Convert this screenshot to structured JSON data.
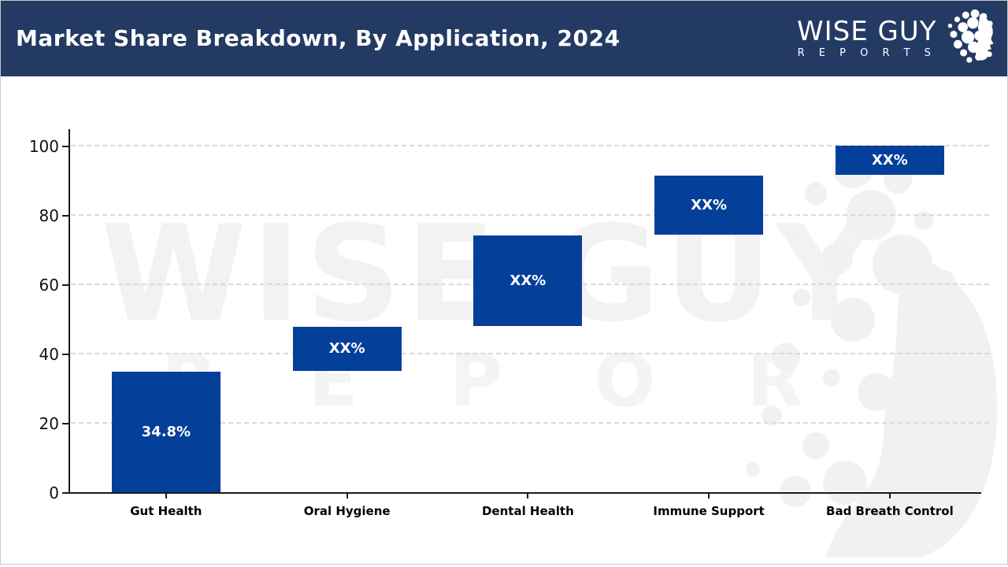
{
  "header": {
    "title": "Market Share Breakdown, By Application, 2024",
    "bg_color": "#233A63",
    "logo": {
      "line1": "WISE GUY",
      "line2": "R E P O R T S"
    }
  },
  "watermark": {
    "line1": "WISE GUY",
    "line2": "R E P O R T S"
  },
  "chart_data": {
    "type": "bar",
    "variant": "floating-waterfall",
    "categories": [
      "Gut Health",
      "Oral Hygiene",
      "Dental Health",
      "Immune Support",
      "Bad Breath Control"
    ],
    "segments": [
      {
        "category": "Gut Health",
        "start": 0,
        "end": 34.8,
        "label": "34.8%"
      },
      {
        "category": "Oral Hygiene",
        "start": 35,
        "end": 47.8,
        "label": "XX%"
      },
      {
        "category": "Dental Health",
        "start": 48,
        "end": 74,
        "label": "XX%"
      },
      {
        "category": "Immune Support",
        "start": 74.3,
        "end": 91.4,
        "label": "XX%"
      },
      {
        "category": "Bad Breath Control",
        "start": 91.7,
        "end": 100,
        "label": "XX%"
      }
    ],
    "yticks": [
      0,
      20,
      40,
      60,
      80,
      100
    ],
    "ylim": [
      0,
      104.5
    ],
    "grid": true,
    "grid_style": "dashed",
    "legend": "none",
    "bar_color": "#04409A",
    "bar_label_color": "#FFFFFF",
    "axis_color": "#1A1A1A",
    "grid_color": "#D9D9D9",
    "xlabel": "",
    "ylabel": ""
  }
}
